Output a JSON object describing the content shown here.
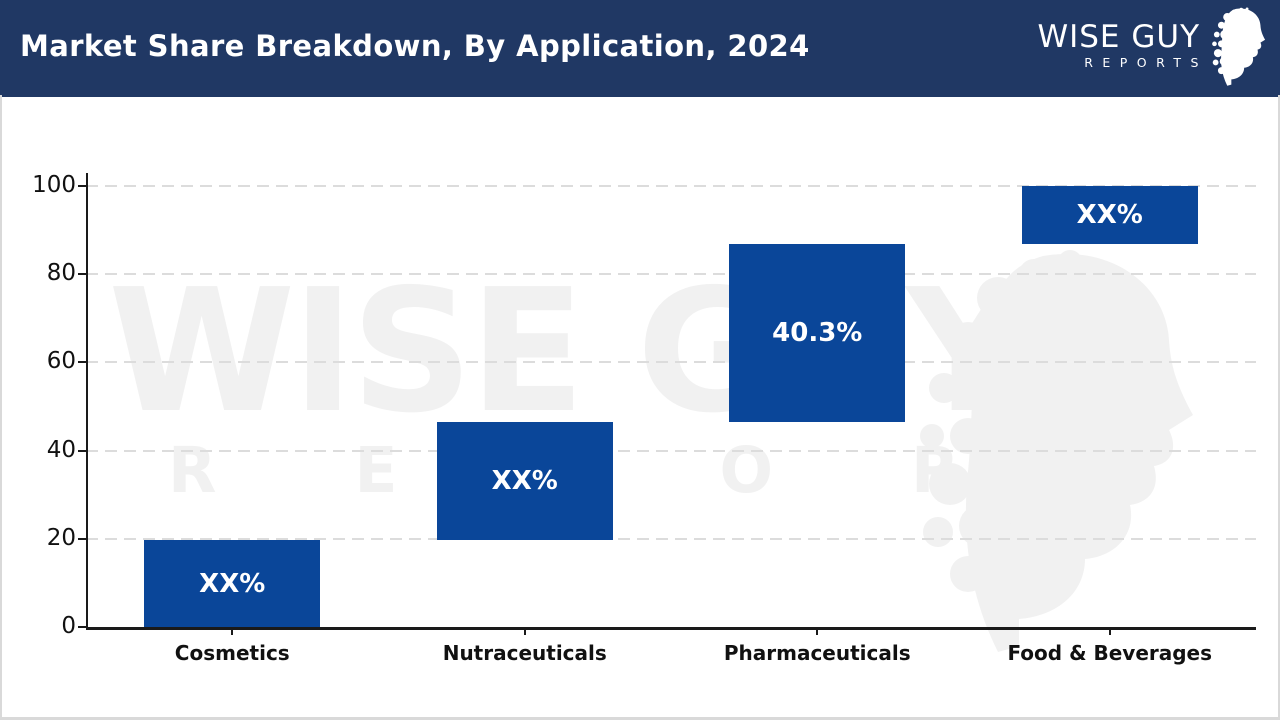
{
  "header": {
    "title": "Market Share Breakdown, By Application, 2024",
    "logo": {
      "wordmark": "WISE GUY",
      "sub": "REPORTS"
    }
  },
  "watermark": {
    "line1": "WISE GUY",
    "line2": "R E P O R T S"
  },
  "colors": {
    "header_bg": "#203864",
    "bar_blue": "#0a4699",
    "axis": "#1a1a1a",
    "gridline": "#dcdcdc",
    "tick_text": "#111111",
    "bar_label_text": "#ffffff",
    "watermark": "#f1f1f1",
    "frame": "#d9d9d9"
  },
  "chart_data": {
    "type": "bar",
    "subtype": "waterfall",
    "title": "Market Share Breakdown, By Application, 2024",
    "categories": [
      "Cosmetics",
      "Nutraceuticals",
      "Pharmaceuticals",
      "Food & Beverages"
    ],
    "bars": [
      {
        "category": "Cosmetics",
        "start": 0,
        "end": 19.7,
        "label": "XX%"
      },
      {
        "category": "Nutraceuticals",
        "start": 19.7,
        "end": 46.5,
        "label": "XX%"
      },
      {
        "category": "Pharmaceuticals",
        "start": 46.5,
        "end": 86.8,
        "label": "40.3%"
      },
      {
        "category": "Food & Beverages",
        "start": 86.8,
        "end": 100,
        "label": "XX%"
      }
    ],
    "segment_sizes": [
      19.7,
      26.8,
      40.3,
      13.2
    ],
    "xlabel": "",
    "ylabel": "",
    "ylim": [
      0,
      100
    ],
    "yticks": [
      0,
      20,
      40,
      60,
      80,
      100
    ],
    "grid": "horizontal-dashed",
    "legend": false
  }
}
